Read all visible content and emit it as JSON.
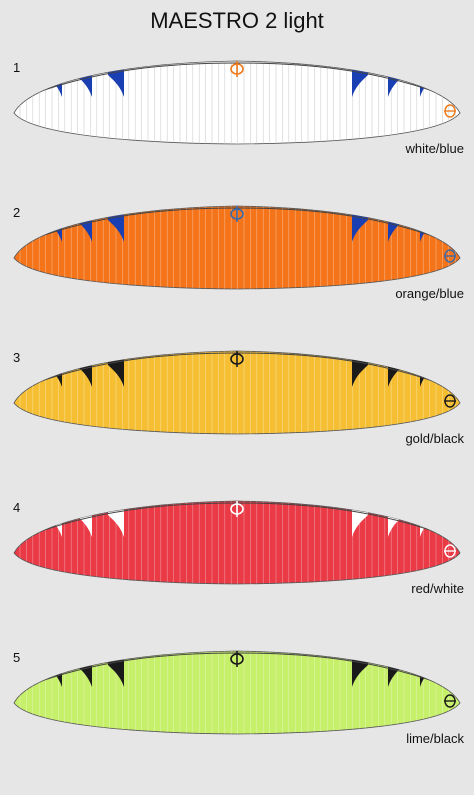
{
  "title": "MAESTRO 2 light",
  "variants": [
    {
      "number": "1",
      "caption": "white/blue",
      "canopy": "#ffffff",
      "accent": "#1a3fb3",
      "logo": "#f07a1a"
    },
    {
      "number": "2",
      "caption": "orange/blue",
      "canopy": "#f5741a",
      "accent": "#1a3fb3",
      "logo": "#3a6aa8"
    },
    {
      "number": "3",
      "caption": "gold/black",
      "canopy": "#f6bf33",
      "accent": "#1a1a1a",
      "logo": "#1a1a1a"
    },
    {
      "number": "4",
      "caption": "red/white",
      "canopy": "#ea3a46",
      "accent": "#ffffff",
      "logo": "#ffffff"
    },
    {
      "number": "5",
      "caption": "lime/black",
      "canopy": "#c6ef6a",
      "accent": "#1a1a1a",
      "logo": "#1a1a1a"
    }
  ]
}
